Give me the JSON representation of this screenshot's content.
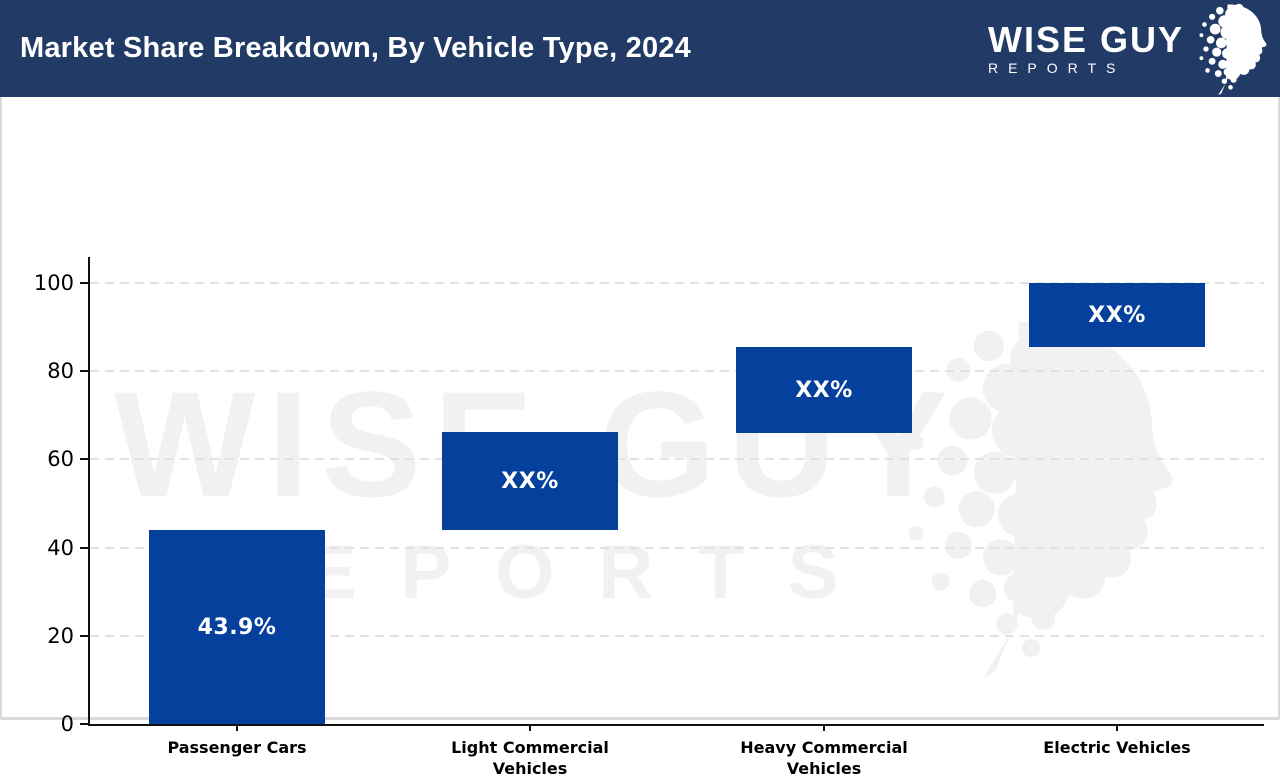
{
  "header": {
    "title": "Market Share Breakdown, By Vehicle Type, 2024",
    "logo_line1": "WISE GUY",
    "logo_line2": "REPORTS"
  },
  "watermark": {
    "line1": "WISE GUY",
    "line2": "REPORTS"
  },
  "chart_data": {
    "type": "bar",
    "variant": "floating-segment-waterfall",
    "title": "Market Share Breakdown, By Vehicle Type, 2024",
    "categories": [
      "Passenger Cars",
      "Light Commercial Vehicles",
      "Heavy Commercial Vehicles",
      "Electric Vehicles"
    ],
    "segments": [
      {
        "category": "Passenger Cars",
        "start": 0,
        "end": 43.9,
        "height": 43.9,
        "label": "43.9%"
      },
      {
        "category": "Light Commercial Vehicles",
        "start": 43.9,
        "end": 66.2,
        "height": 22.3,
        "label": "XX%"
      },
      {
        "category": "Heavy Commercial Vehicles",
        "start": 66.2,
        "end": 85.6,
        "height": 19.4,
        "label": "XX%"
      },
      {
        "category": "Electric Vehicles",
        "start": 85.6,
        "end": 100,
        "height": 14.4,
        "label": "XX%"
      }
    ],
    "ylim": [
      0,
      100
    ],
    "yticks": [
      0,
      20,
      40,
      60,
      80,
      100
    ],
    "grid": "horizontal-dashed",
    "legend": "none",
    "colors": {
      "bar": "#05419c",
      "bar_label": "#ffffff",
      "header_bg": "#213a66",
      "grid": "#e2e2e2",
      "axis": "#111111",
      "watermark": "#f1f1f1",
      "page_border": "#d9d9d9",
      "title": "#ffffff"
    }
  }
}
